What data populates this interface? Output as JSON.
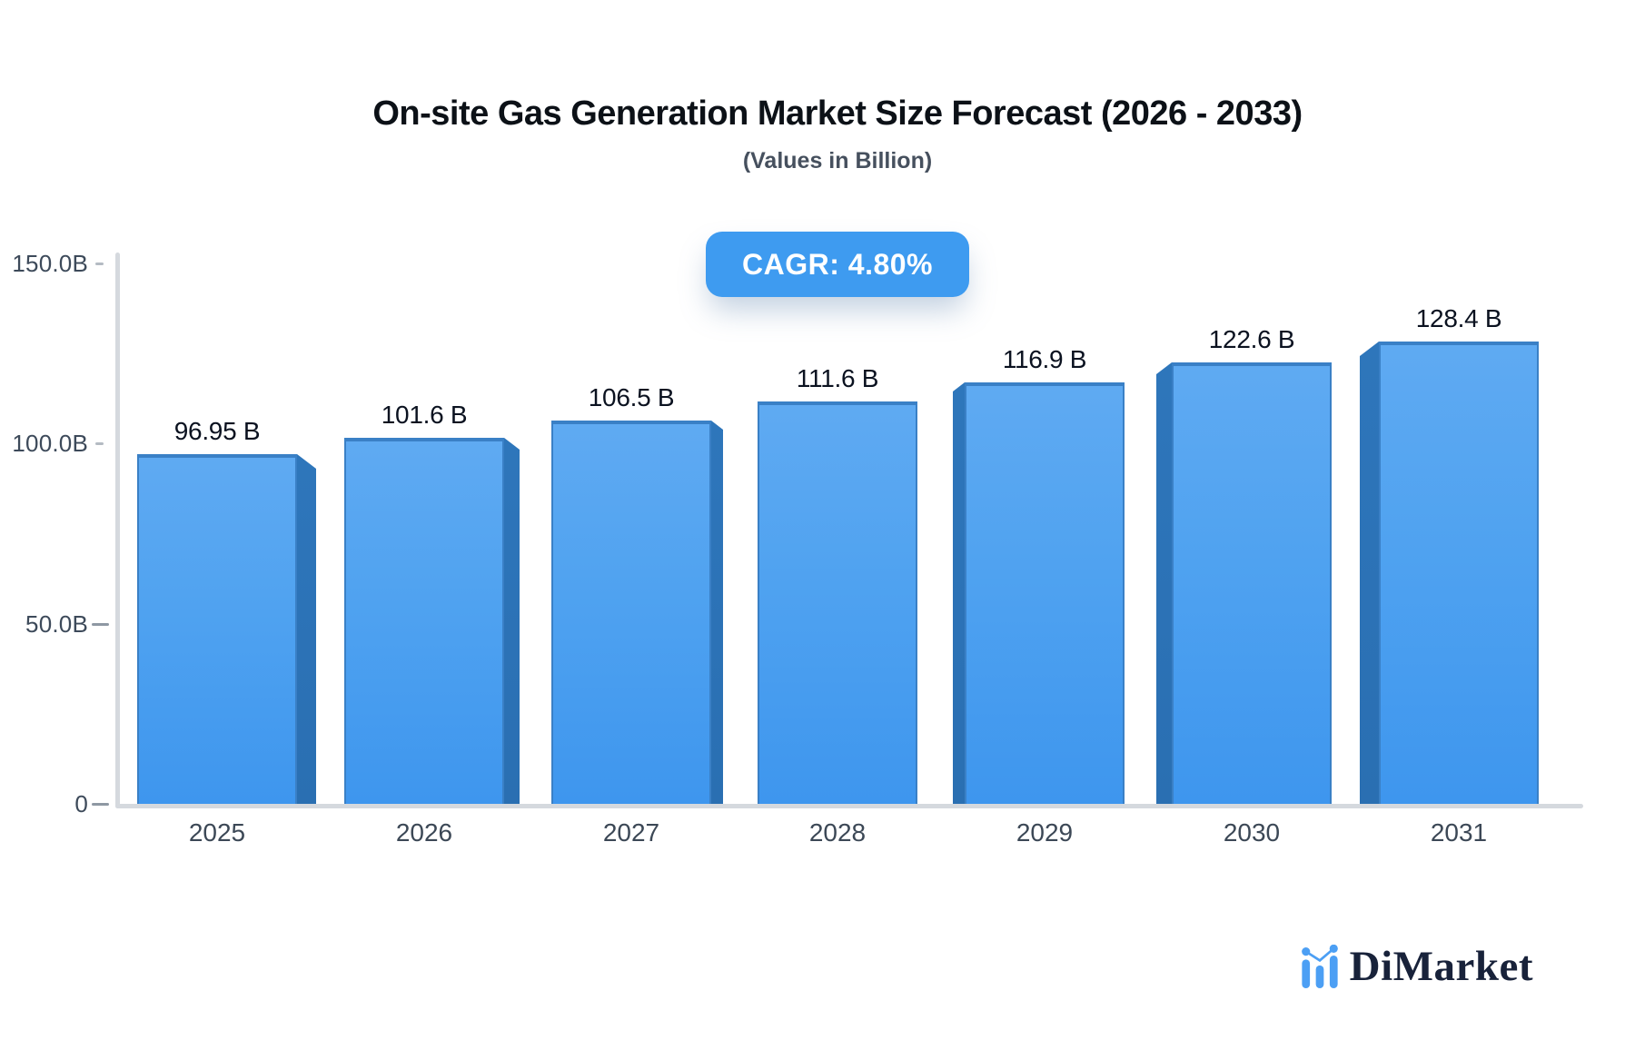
{
  "header": {
    "title": "On-site Gas Generation Market Size Forecast (2026 - 2033)",
    "subtitle": "(Values in Billion)",
    "cagr_badge": "CAGR: 4.80%"
  },
  "chart_data": {
    "type": "bar",
    "title": "On-site Gas Generation Market Size Forecast (2026 - 2033)",
    "subtitle": "(Values in Billion)",
    "cagr_annotation": "CAGR: 4.80%",
    "categories": [
      "2025",
      "2026",
      "2027",
      "2028",
      "2029",
      "2030",
      "2031"
    ],
    "values": [
      96.95,
      101.6,
      106.5,
      111.6,
      116.9,
      122.6,
      128.4
    ],
    "bar_labels": [
      "96.95 B",
      "101.6 B",
      "106.5 B",
      "111.6 B",
      "116.9 B",
      "122.6 B",
      "128.4 B"
    ],
    "xlabel": "",
    "ylabel": "",
    "ylim": [
      0,
      150
    ],
    "yticks": [
      {
        "label": "0",
        "value": 0,
        "minor": false
      },
      {
        "label": "50.0B",
        "value": 50,
        "minor": false
      },
      {
        "label": "100.0B",
        "value": 100,
        "minor": true
      },
      {
        "label": "150.0B",
        "value": 150,
        "minor": true
      }
    ],
    "grid": "off",
    "legend": "none",
    "style": "3d-perspective-bars-facing-center"
  },
  "colors": {
    "badge_bg": "#3e9bf0",
    "bar_face_top": "#5faaf2",
    "bar_face_mid": "#4fa2f0",
    "bar_face_bottom": "#3e96ee",
    "bar_side": "#2e76bb",
    "bar_side_dark": "#2a6fb2",
    "axis_line": "#d5d9de",
    "value_label": "#0b1220",
    "tick_label": "#3d4a5a",
    "logo_blue": "#4c9ff4",
    "logo_navy": "#18223a"
  },
  "logo": {
    "text": "DiMarket",
    "icon": "bar-chart-logo-icon"
  }
}
